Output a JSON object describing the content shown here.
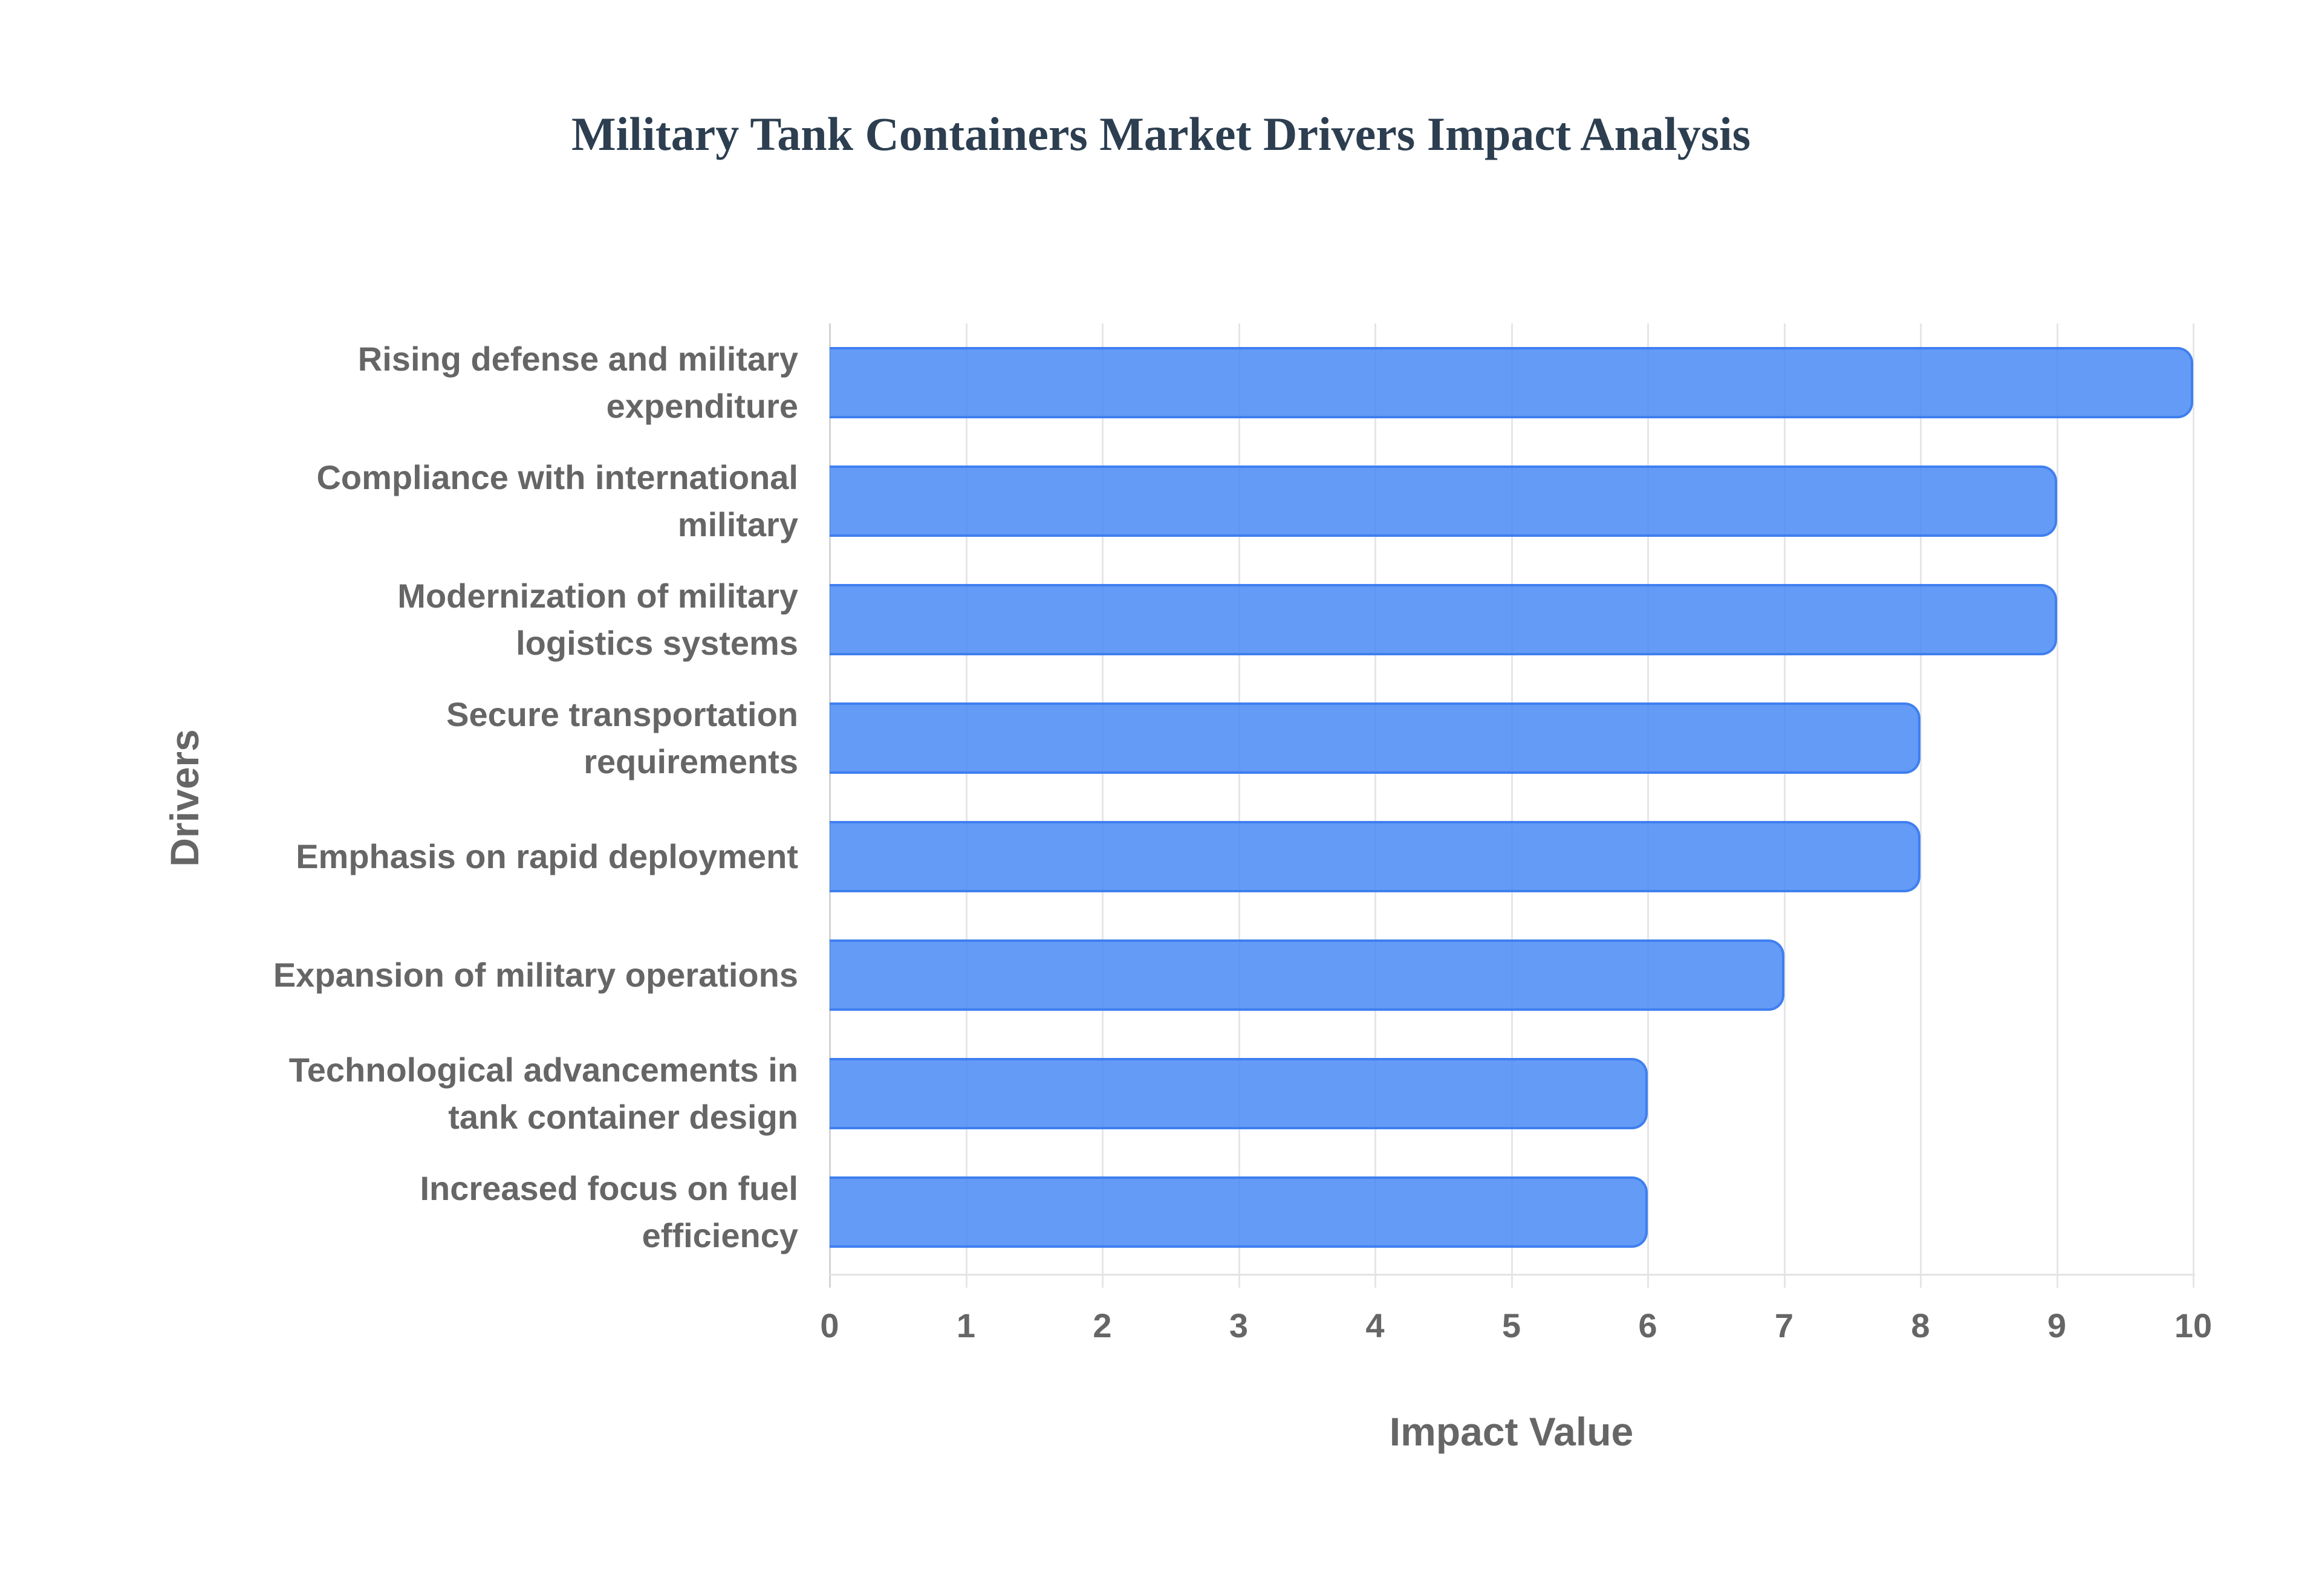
{
  "chart_data": {
    "type": "bar",
    "orientation": "horizontal",
    "title": "Military Tank Containers Market Drivers Impact Analysis",
    "xlabel": "Impact Value",
    "ylabel": "Drivers",
    "xlim": [
      0,
      10
    ],
    "x_ticks": [
      "0",
      "1",
      "2",
      "3",
      "4",
      "5",
      "6",
      "7",
      "8",
      "9",
      "10"
    ],
    "grid": true,
    "legend": null,
    "categories": [
      "Rising defense and military expenditure",
      "Compliance with international military",
      "Modernization of military logistics systems",
      "Secure transportation requirements",
      "Emphasis on rapid deployment",
      "Expansion of military operations",
      "Technological advancements in tank container design",
      "Increased focus on fuel efficiency"
    ],
    "values": [
      10,
      9,
      9,
      8,
      8,
      7,
      6,
      6
    ],
    "colors": {
      "bar_fill": "#5f99f5",
      "bar_border": "#3f7ff0",
      "title": "#2c3e50",
      "axis_text": "#666666",
      "grid": "#e6e6e6"
    }
  }
}
